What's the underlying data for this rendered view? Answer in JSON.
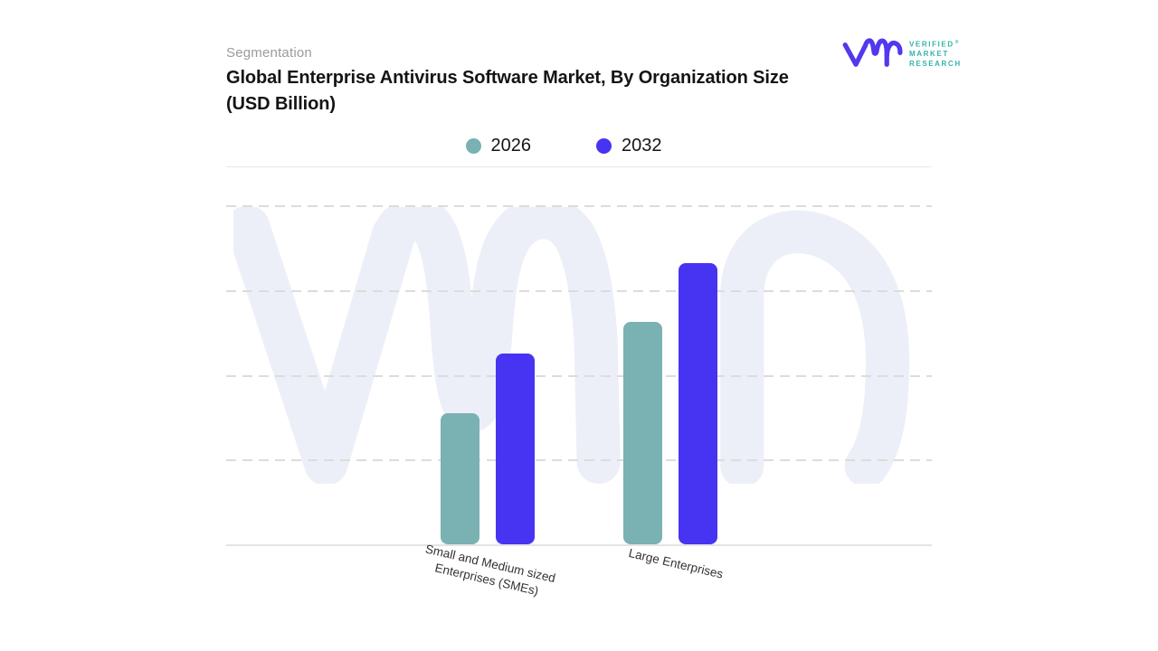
{
  "header": {
    "segmentation_label": "Segmentation",
    "title": "Global Enterprise Antivirus Software Market, By Organization Size",
    "subtitle": "(USD Billion)"
  },
  "brand": {
    "name_lines": [
      "VERIFIED",
      "MARKET",
      "RESEARCH"
    ],
    "registered_mark": "®",
    "glyph": "vmr-monogram",
    "glyph_color": "#5238ee",
    "text_color": "#33b3a7"
  },
  "legend": {
    "items": [
      {
        "label": "2026",
        "color": "#7ab1b2"
      },
      {
        "label": "2032",
        "color": "#4734f2"
      }
    ]
  },
  "chart_data": {
    "type": "bar",
    "title": "Global Enterprise Antivirus Software Market, By Organization Size (USD Billion)",
    "categories": [
      "Small and Medium sized Enterprises (SMEs)",
      "Large Enterprises"
    ],
    "category_label_lines": [
      [
        "Small and Medium sized",
        "Enterprises (SMEs)"
      ],
      [
        "Large Enterprises"
      ]
    ],
    "series": [
      {
        "name": "2026",
        "color": "#7ab1b2",
        "values": [
          1.55,
          2.62
        ]
      },
      {
        "name": "2032",
        "color": "#4734f2",
        "values": [
          2.25,
          3.32
        ]
      }
    ],
    "xlabel": "",
    "ylabel": "",
    "units": "USD Billion",
    "ylim": [
      0,
      4
    ],
    "value_scale_note": "y-axis has no visible numeric tick labels; values estimated in gridline units",
    "y_axis_labels_visible": false,
    "gridlines": "horizontal-dashed",
    "legend_entries": [
      "2026",
      "2032"
    ],
    "legend_position": "top-center",
    "background_watermark": "vmr-monogram",
    "x_label_rotation_deg": 13
  }
}
